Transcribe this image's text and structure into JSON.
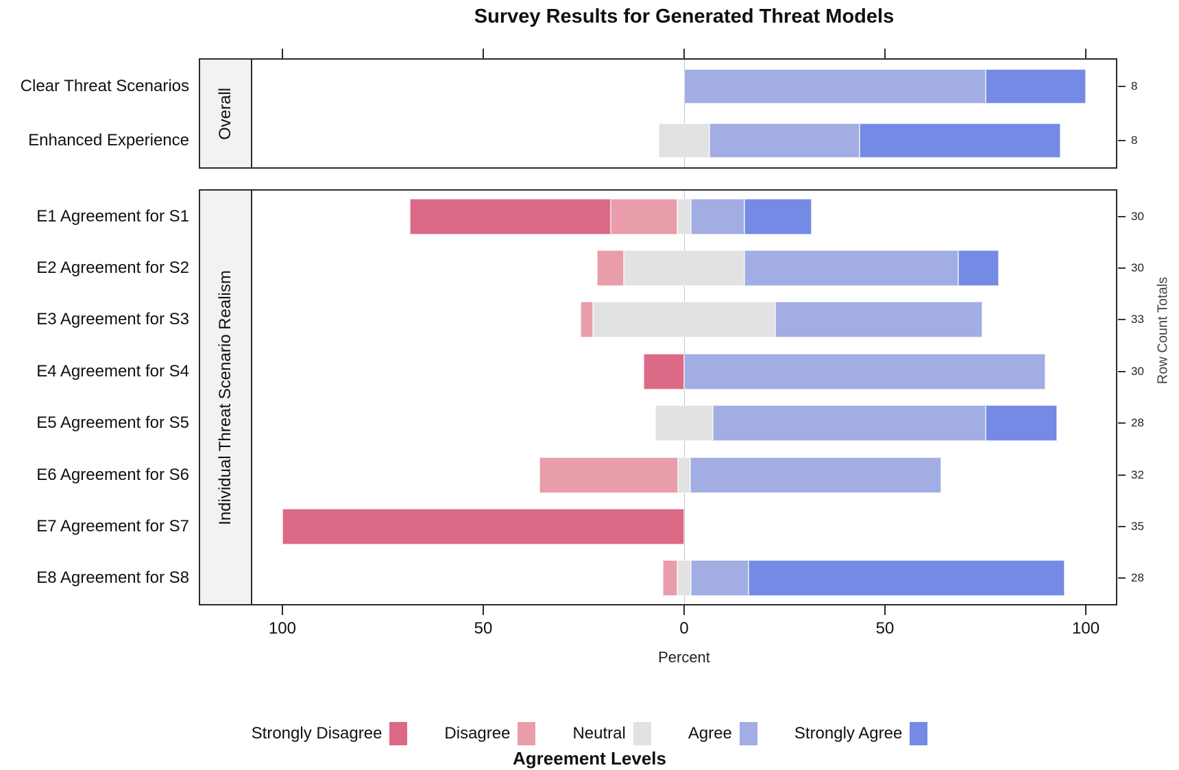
{
  "title": "Survey Results for Generated Threat Models",
  "chart_data": {
    "type": "diverging_stacked_bar",
    "title": "Survey Results for Generated Threat Models",
    "xlabel": "Percent",
    "legend_title": "Agreement Levels",
    "right_axis_label": "Row Count Totals",
    "levels": [
      "Strongly Disagree",
      "Disagree",
      "Neutral",
      "Agree",
      "Strongly Agree"
    ],
    "level_colors": [
      "#dc6985",
      "#e99caa",
      "#e2e2e2",
      "#a2ade3",
      "#748ae5"
    ],
    "neutral_split_on_zero": true,
    "xlim": [
      -107.5,
      107.5
    ],
    "x_ticks": [
      -100,
      -50,
      0,
      50,
      100
    ],
    "x_tick_labels": [
      "100",
      "50",
      "0",
      "50",
      "100"
    ],
    "grid": false,
    "panels": [
      {
        "strip": "Overall",
        "rows": [
          {
            "label": "Clear Threat Scenarios",
            "total": 8,
            "percents": [
              0,
              0,
              0,
              75,
              25
            ],
            "counts": [
              0,
              0,
              0,
              6,
              2
            ]
          },
          {
            "label": "Enhanced Experience",
            "total": 8,
            "percents": [
              0,
              0,
              12.5,
              37.5,
              50
            ],
            "counts": [
              0,
              0,
              1,
              3,
              4
            ]
          }
        ]
      },
      {
        "strip": "Individual Threat Scenario Realism",
        "rows": [
          {
            "label": "E1 Agreement for S1",
            "total": 30,
            "percents": [
              50,
              16.67,
              3.33,
              13.33,
              16.67
            ],
            "counts": [
              15,
              5,
              1,
              4,
              5
            ]
          },
          {
            "label": "E2 Agreement for S2",
            "total": 30,
            "percents": [
              0,
              6.67,
              30,
              53.33,
              10
            ],
            "counts": [
              0,
              2,
              9,
              16,
              3
            ]
          },
          {
            "label": "E3 Agreement for S3",
            "total": 33,
            "percents": [
              0,
              3.03,
              45.45,
              51.52,
              0
            ],
            "counts": [
              0,
              1,
              15,
              17,
              0
            ]
          },
          {
            "label": "E4 Agreement for S4",
            "total": 30,
            "percents": [
              10,
              0,
              0,
              90,
              0
            ],
            "counts": [
              3,
              0,
              0,
              27,
              0
            ]
          },
          {
            "label": "E5 Agreement for S5",
            "total": 28,
            "percents": [
              0,
              0,
              14.29,
              67.86,
              17.86
            ],
            "counts": [
              0,
              0,
              4,
              19,
              5
            ]
          },
          {
            "label": "E6 Agreement for S6",
            "total": 32,
            "percents": [
              0,
              34.38,
              3.12,
              62.5,
              0
            ],
            "counts": [
              0,
              11,
              1,
              20,
              0
            ]
          },
          {
            "label": "E7 Agreement for S7",
            "total": 35,
            "percents": [
              100,
              0,
              0,
              0,
              0
            ],
            "counts": [
              35,
              0,
              0,
              0,
              0
            ]
          },
          {
            "label": "E8 Agreement for S8",
            "total": 28,
            "percents": [
              0,
              3.57,
              3.57,
              14.29,
              78.57
            ],
            "counts": [
              0,
              1,
              1,
              4,
              22
            ]
          }
        ]
      }
    ]
  }
}
